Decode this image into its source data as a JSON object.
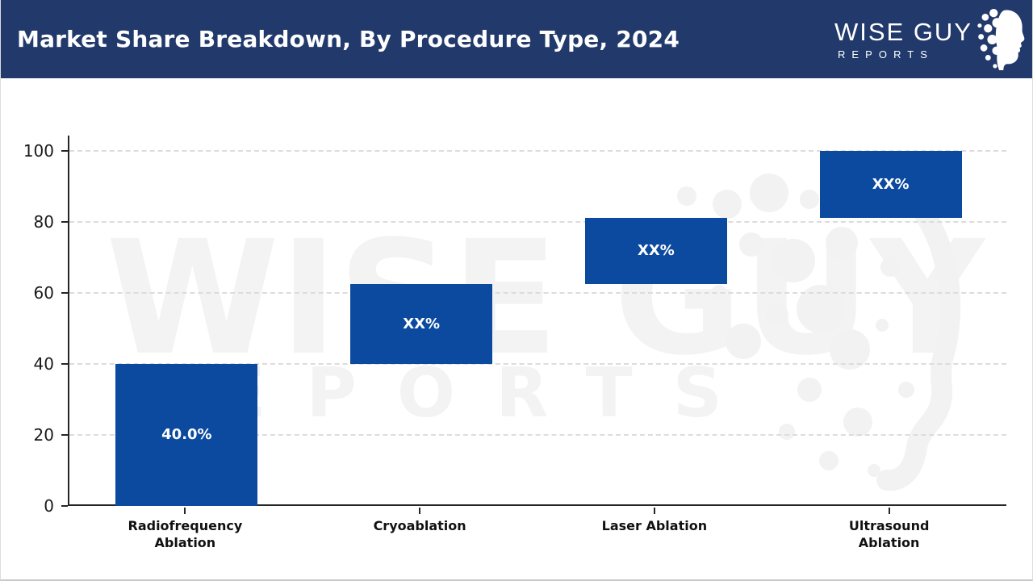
{
  "header": {
    "title": "Market Share Breakdown, By Procedure Type, 2024",
    "bg_color": "#21396b",
    "logo": {
      "line1": "WISE GUY",
      "line2": "REPORTS",
      "icon": "dotted-face-profile"
    }
  },
  "watermark": {
    "line1": "WISE GUY",
    "line2": "REPORTS"
  },
  "chart_data": {
    "type": "bar",
    "subtype": "waterfall-stacked",
    "title": "Market Share Breakdown, By Procedure Type, 2024",
    "categories": [
      "Radiofrequency Ablation",
      "Cryoablation",
      "Laser Ablation",
      "Ultrasound Ablation"
    ],
    "series": [
      {
        "name": "Market Share (%)",
        "segments": [
          {
            "category": "Radiofrequency Ablation",
            "start": 0,
            "end": 40,
            "label": "40.0%"
          },
          {
            "category": "Cryoablation",
            "start": 40,
            "end": 62.5,
            "label": "XX%"
          },
          {
            "category": "Laser Ablation",
            "start": 62.5,
            "end": 81,
            "label": "XX%"
          },
          {
            "category": "Ultrasound Ablation",
            "start": 81,
            "end": 100,
            "label": "XX%"
          }
        ]
      }
    ],
    "yticks": [
      0,
      20,
      40,
      60,
      80,
      100
    ],
    "ylim": [
      0,
      105
    ],
    "xlabel": "",
    "ylabel": "",
    "grid": "horizontal-dashed",
    "legend": "none",
    "bar_color": "#0b4a9e",
    "bar_label_color": "#ffffff",
    "axis_color": "#262626",
    "gridline_color": "#dcdcdc"
  }
}
